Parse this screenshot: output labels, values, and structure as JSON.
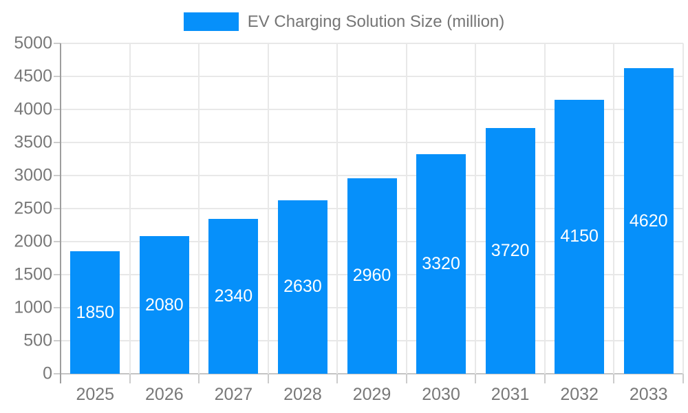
{
  "legend": {
    "label": "EV Charging Solution Size (million)",
    "swatch_color": "#0690FA"
  },
  "chart_data": {
    "type": "bar",
    "title": "EV Charging Solution Size (million)",
    "categories": [
      "2025",
      "2026",
      "2027",
      "2028",
      "2029",
      "2030",
      "2031",
      "2032",
      "2033"
    ],
    "series": [
      {
        "name": "EV Charging Solution Size (million)",
        "values": [
          1850,
          2080,
          2340,
          2630,
          2960,
          3320,
          3720,
          4150,
          4620
        ]
      }
    ],
    "bar_value_labels": [
      "1850",
      "2080",
      "2340",
      "2630",
      "2960",
      "3320",
      "3720",
      "4150",
      "4620"
    ],
    "xlabel": "",
    "ylabel": "",
    "ylim": [
      0,
      5000
    ],
    "ytick_step": 500,
    "ytick_labels": [
      "0",
      "500",
      "1000",
      "1500",
      "2000",
      "2500",
      "3000",
      "3500",
      "4000",
      "4500",
      "5000"
    ],
    "grid": true,
    "legend_position": "top"
  },
  "colors": {
    "background": "#FFFFFF",
    "bar_fill": "#0690FA",
    "value_label": "#FFFFFF",
    "axis_label": "#787878",
    "legend_text": "#757575",
    "gridline": "#E8E8E8",
    "zero_line": "#C4C4C4",
    "y_axis_line": "#9E9E9E",
    "tick": "#CCCCCC"
  }
}
